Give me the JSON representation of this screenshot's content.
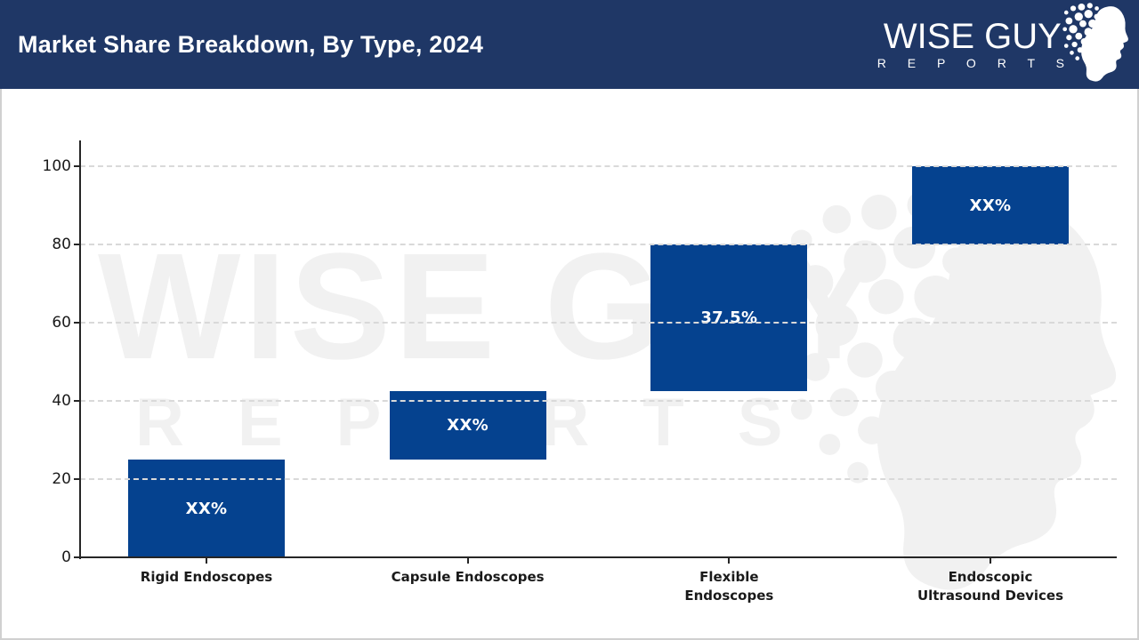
{
  "header": {
    "title": "Market Share Breakdown, By Type, 2024",
    "logo": {
      "brand_line1": "WISE GUY",
      "brand_line2": "R E P O R T S"
    }
  },
  "watermark": {
    "line1": "WISE GUY",
    "line2": "REPORTS"
  },
  "chart_data": {
    "type": "bar",
    "variant": "floating waterfall-style vertical bars",
    "title": "Market Share Breakdown, By Type, 2024",
    "categories": [
      "Rigid Endoscopes",
      "Capsule Endoscopes",
      "Flexible Endoscopes",
      "Endoscopic Ultrasound Devices"
    ],
    "category_label_lines": [
      [
        "Rigid Endoscopes"
      ],
      [
        "Capsule Endoscopes"
      ],
      [
        "Flexible",
        "Endoscopes"
      ],
      [
        "Endoscopic",
        "Ultrasound Devices"
      ]
    ],
    "bars": [
      {
        "category": "Rigid Endoscopes",
        "start": 0,
        "end": 25,
        "height": 25,
        "label": "XX%"
      },
      {
        "category": "Capsule Endoscopes",
        "start": 25,
        "end": 42.5,
        "height": 17.5,
        "label": "XX%"
      },
      {
        "category": "Flexible Endoscopes",
        "start": 42.5,
        "end": 80,
        "height": 37.5,
        "label": "37.5%"
      },
      {
        "category": "Endoscopic Ultrasound Devices",
        "start": 80,
        "end": 100,
        "height": 20,
        "label": "XX%"
      }
    ],
    "ylim": [
      0,
      100
    ],
    "yticks": [
      0,
      20,
      40,
      60,
      80,
      100
    ],
    "xlabel": "",
    "ylabel": "",
    "grid": "horizontal dashed, drawn over bars",
    "legend": "none"
  },
  "colors": {
    "header_bg": "#1F3766",
    "bar_fill": "#05428F",
    "axis": "#262626",
    "grid_line": "#D9D9D9",
    "tick_text": "#1A1A1A",
    "watermark": "#F1F1F1",
    "card_border": "#D0D0D0",
    "title_text": "#FFFFFF",
    "bar_label_text": "#FFFFFF"
  }
}
